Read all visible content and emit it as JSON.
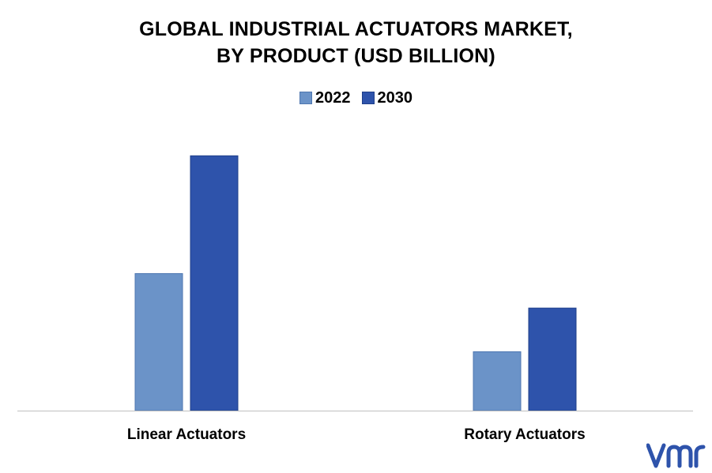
{
  "chart_data": {
    "type": "bar",
    "title_lines": [
      "GLOBAL INDUSTRIAL ACTUATORS MARKET,",
      "BY PRODUCT (USD BILLION)"
    ],
    "categories": [
      "Linear Actuators",
      "Rotary Actuators"
    ],
    "series": [
      {
        "name": "2022",
        "values": [
          13.5,
          5.8
        ],
        "color": "#6b93c8"
      },
      {
        "name": "2030",
        "values": [
          25.1,
          10.1
        ],
        "color": "#2e53ab"
      }
    ],
    "ylim": [
      0,
      28
    ],
    "grid": false,
    "legend_position": "top-center"
  },
  "brand": {
    "logo_color": "#2e53ab",
    "logo_icon": "vmr-logo"
  }
}
